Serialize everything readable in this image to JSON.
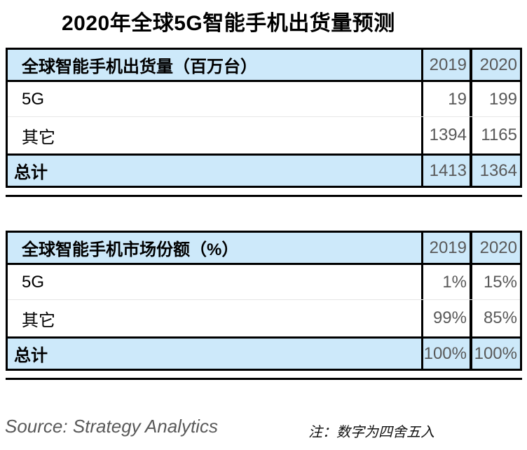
{
  "title": "2020年全球5G智能手机出货量预测",
  "tables": [
    {
      "header": {
        "label": "全球智能手机出货量（百万台）",
        "col1": "2019",
        "col2": "2020"
      },
      "rows": [
        {
          "label": "5G",
          "v2019": "19",
          "v2020": "199"
        },
        {
          "label": "其它",
          "v2019": "1394",
          "v2020": "1165"
        }
      ],
      "total": {
        "label": "总计",
        "v2019": "1413",
        "v2020": "1364"
      }
    },
    {
      "header": {
        "label": "全球智能手机市场份额（%）",
        "col1": "2019",
        "col2": "2020"
      },
      "rows": [
        {
          "label": "5G",
          "v2019": "1%",
          "v2020": "15%"
        },
        {
          "label": "其它",
          "v2019": "99%",
          "v2020": "85%"
        }
      ],
      "total": {
        "label": "总计",
        "v2019": "100%",
        "v2020": "100%"
      }
    }
  ],
  "footer": {
    "source": "Source: Strategy Analytics",
    "note": "注：数字为四舍五入"
  },
  "colors": {
    "header_bg": "#cde9fa",
    "border": "#000000",
    "number_text": "#595959"
  },
  "chart_data": [
    {
      "type": "table",
      "title": "全球智能手机出货量（百万台）",
      "columns": [
        "",
        "2019",
        "2020"
      ],
      "rows": [
        [
          "5G",
          19,
          199
        ],
        [
          "其它",
          1394,
          1165
        ],
        [
          "总计",
          1413,
          1364
        ]
      ]
    },
    {
      "type": "table",
      "title": "全球智能手机市场份额（%）",
      "columns": [
        "",
        "2019",
        "2020"
      ],
      "rows": [
        [
          "5G",
          "1%",
          "15%"
        ],
        [
          "其它",
          "99%",
          "85%"
        ],
        [
          "总计",
          "100%",
          "100%"
        ]
      ]
    }
  ]
}
